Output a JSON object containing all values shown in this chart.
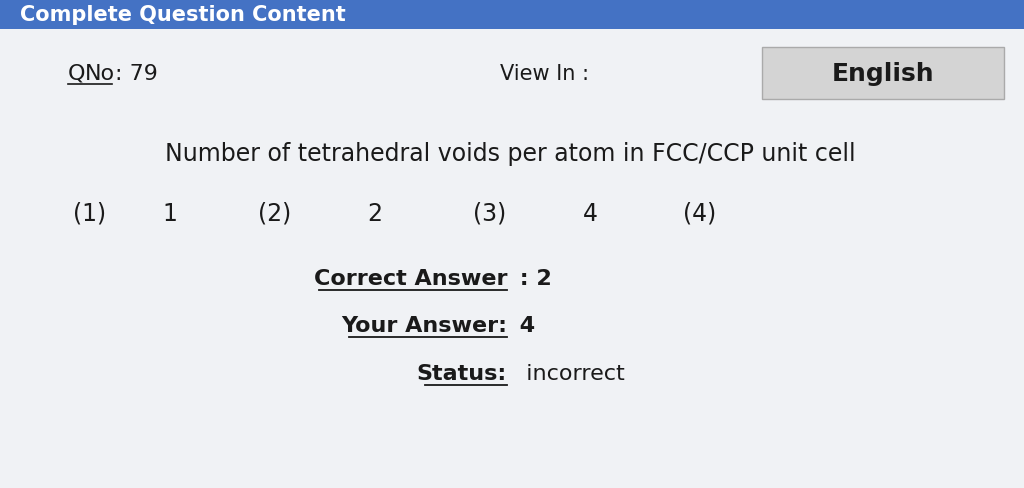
{
  "header_bg_color": "#4472c4",
  "header_text": "Complete Question Content",
  "body_bg_color": "#f0f2f5",
  "qno_value": ": 79",
  "view_in_label": "View In :",
  "english_btn_text": "English",
  "english_btn_bg": "#d4d4d4",
  "question_text": "Number of tetrahedral voids per atom in FCC/CCP unit cell",
  "options": [
    "(1)",
    "1",
    "(2)",
    "2",
    "(3)",
    "4",
    "(4)"
  ],
  "correct_answer_label": "Correct Answer",
  "correct_answer_value": " : 2",
  "your_answer_label": "Your Answer:",
  "your_answer_value": " 4",
  "status_label": "Status:",
  "status_value": "  incorrect",
  "font_color": "#1a1a1a",
  "underline_color": "#1a1a1a"
}
